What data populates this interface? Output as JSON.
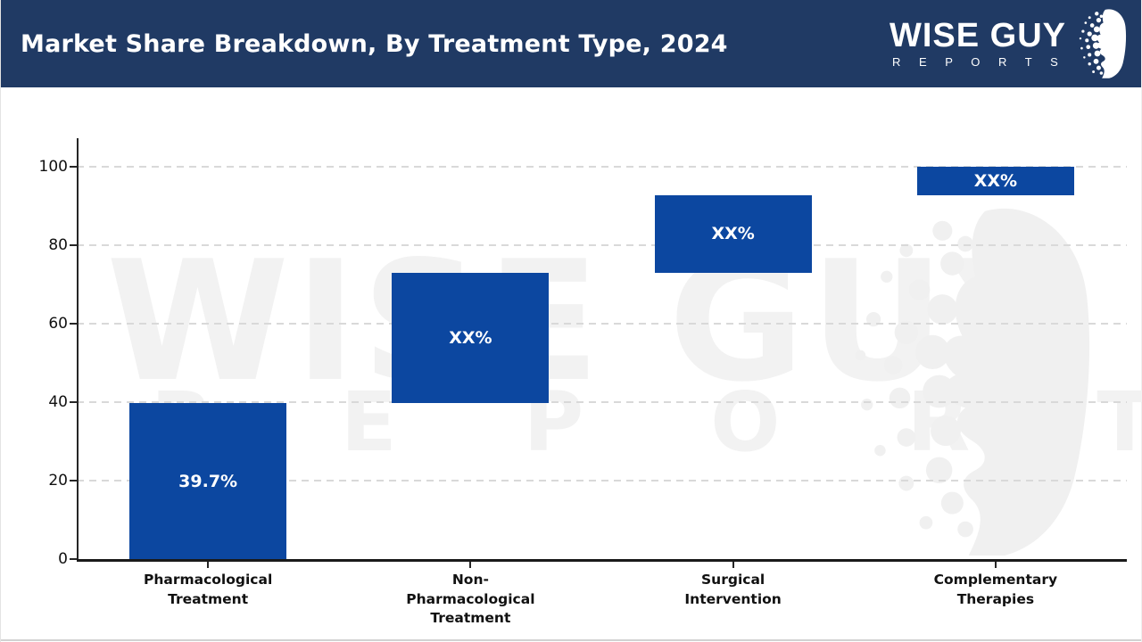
{
  "header": {
    "title": "Market Share Breakdown, By Treatment Type, 2024",
    "logo_line1": "WISE GUY",
    "logo_line2": "R E P O R T S"
  },
  "watermark": {
    "line1": "WISE GUY",
    "line2": "R E P O R T S"
  },
  "colors": {
    "header_bg": "#203a64",
    "bar": "#0c47a0",
    "grid": "#d9d9d9",
    "axis": "#262626",
    "value_label": "#ffffff",
    "watermark": "#f2f2f2"
  },
  "chart_data": {
    "type": "bar",
    "subtype": "waterfall",
    "title": "Market Share Breakdown, By Treatment Type, 2024",
    "categories": [
      "Pharmacological\nTreatment",
      "Non-\nPharmacological\nTreatment",
      "Surgical\nIntervention",
      "Complementary\nTherapies"
    ],
    "segments": [
      {
        "category": "Pharmacological Treatment",
        "start": 0,
        "end": 39.7,
        "label": "39.7%"
      },
      {
        "category": "Non-Pharmacological Treatment",
        "start": 39.7,
        "end": 73.0,
        "label": "XX%"
      },
      {
        "category": "Surgical Intervention",
        "start": 73.0,
        "end": 92.7,
        "label": "XX%"
      },
      {
        "category": "Complementary Therapies",
        "start": 92.7,
        "end": 100,
        "label": "XX%"
      }
    ],
    "yticks": [
      0,
      20,
      40,
      60,
      80,
      100
    ],
    "ylim": [
      0,
      107
    ],
    "grid": "horizontal-dashed",
    "legend": "none",
    "xlabel": "",
    "ylabel": ""
  }
}
